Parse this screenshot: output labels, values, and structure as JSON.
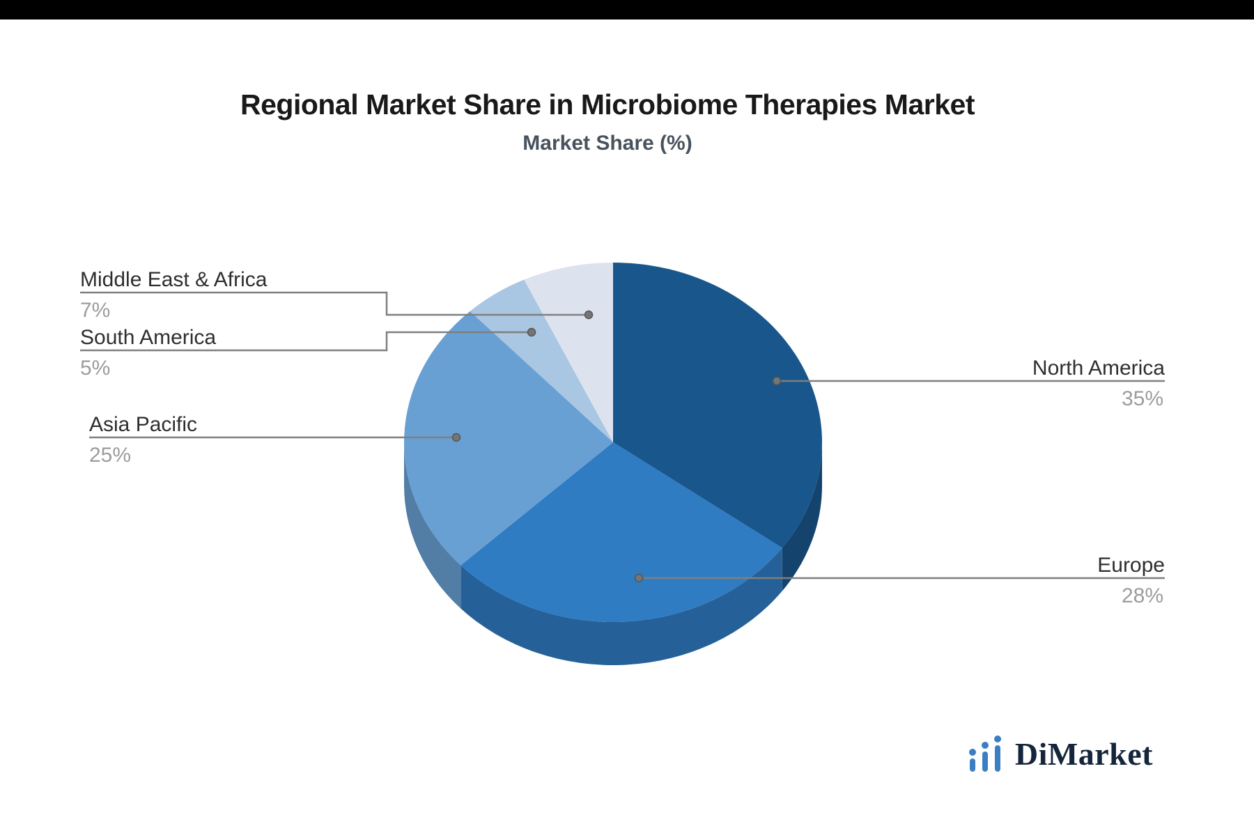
{
  "chart": {
    "title": "Regional Market Share in Microbiome Therapies Market",
    "subtitle": "Market Share (%)",
    "callouts": [
      {
        "label": "North America",
        "value": "35%"
      },
      {
        "label": "Europe",
        "value": "28%"
      },
      {
        "label": "Asia Pacific",
        "value": "25%"
      },
      {
        "label": "South America",
        "value": "5%"
      },
      {
        "label": "Middle East & Africa",
        "value": "7%"
      }
    ]
  },
  "chart_data": {
    "type": "pie",
    "title": "Regional Market Share in Microbiome Therapies Market",
    "subtitle": "Market Share (%)",
    "categories": [
      "North America",
      "Europe",
      "Asia Pacific",
      "South America",
      "Middle East & Africa"
    ],
    "values": [
      35,
      28,
      25,
      5,
      7
    ],
    "unit": "percent",
    "colors": [
      "#19568c",
      "#2f7cc3",
      "#69a0d4",
      "#a9c6e2",
      "#dce3ee"
    ],
    "style_3d": true,
    "start_angle_deg": 0,
    "direction": "clockwise",
    "legend_position": "none",
    "label_style": "callout leader lines with category name and percent value",
    "leader_line_color": "#7f7f7f",
    "label_color": "#2e2e2e",
    "value_color": "#9c9c9c"
  },
  "branding": {
    "logo_text": "DiMarket",
    "logo_color": "#3c7ec2"
  }
}
